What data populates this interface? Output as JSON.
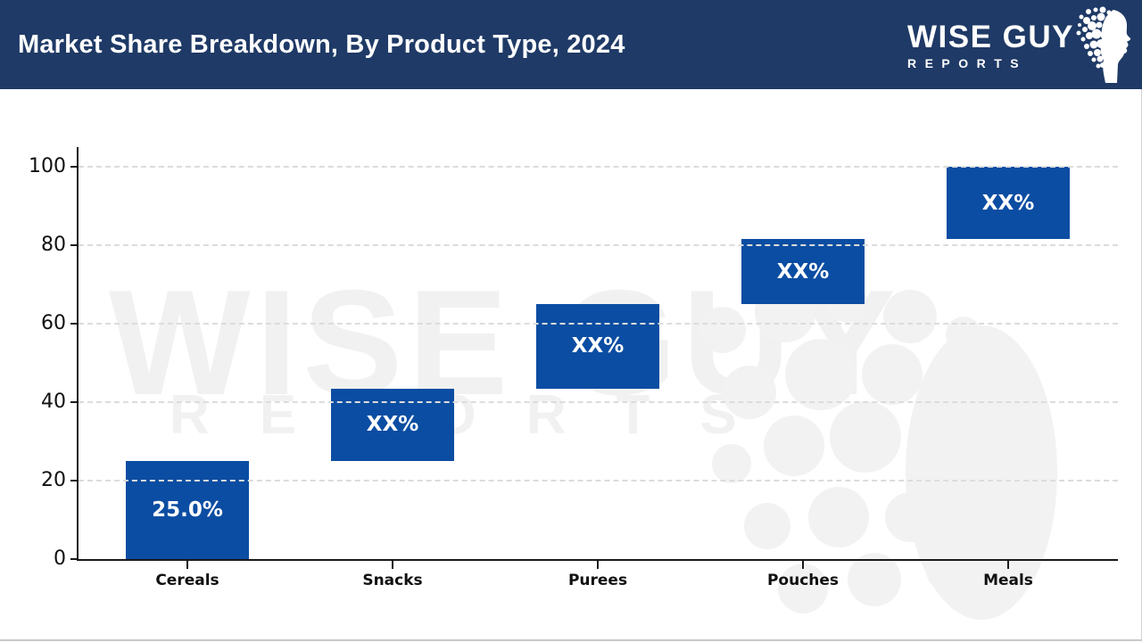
{
  "header": {
    "title": "Market Share Breakdown, By Product Type, 2024",
    "bg_color": "#1f3a66",
    "logo": {
      "line1": "WISE GUY",
      "line2": "REPORTS"
    }
  },
  "watermark": {
    "line1": "WISE GUY",
    "line2": "REPORTS"
  },
  "chart_data": {
    "type": "bar",
    "subtype": "waterfall",
    "title": "Market Share Breakdown, By Product Type, 2024",
    "xlabel": "",
    "ylabel": "",
    "categories": [
      "Cereals",
      "Snacks",
      "Purees",
      "Pouches",
      "Meals"
    ],
    "bars": [
      {
        "category": "Cereals",
        "start": 0,
        "end": 25,
        "label": "25.0%"
      },
      {
        "category": "Snacks",
        "start": 25,
        "end": 43.5,
        "label": "XX%"
      },
      {
        "category": "Purees",
        "start": 43.5,
        "end": 65,
        "label": "XX%"
      },
      {
        "category": "Pouches",
        "start": 65,
        "end": 81.5,
        "label": "XX%"
      },
      {
        "category": "Meals",
        "start": 81.5,
        "end": 100,
        "label": "XX%"
      }
    ],
    "y_ticks": [
      0,
      20,
      40,
      60,
      80,
      100
    ],
    "ylim": [
      0,
      105
    ],
    "bar_color": "#0b4da2",
    "grid": "dashed-horizontal-above-bars",
    "legend": "none"
  }
}
